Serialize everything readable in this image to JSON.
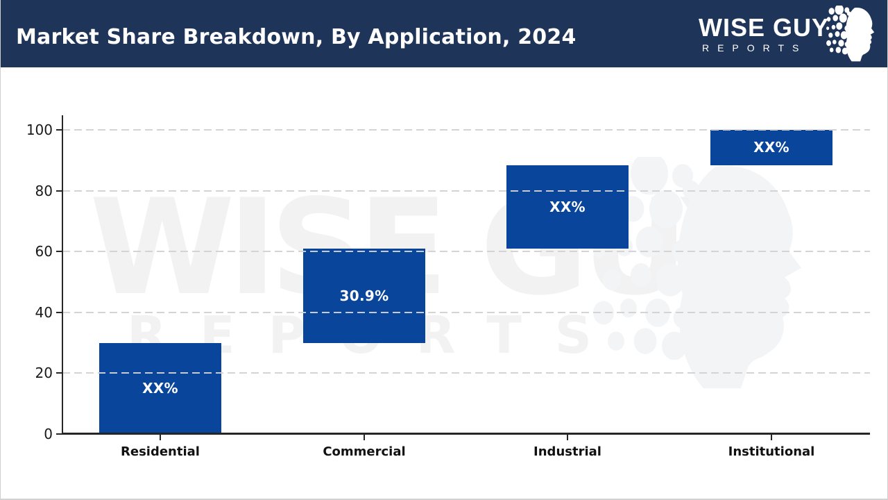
{
  "header": {
    "title": "Market Share Breakdown, By Application, 2024",
    "logo": {
      "name": "Wise Guy Reports",
      "line1": "WISE GUY",
      "line2": "REPORTS"
    }
  },
  "watermark": {
    "line1": "WISE GUY",
    "line2": "REPORTS"
  },
  "colors": {
    "header_bg": "#1f3459",
    "bar": "#0a459c",
    "bar_label": "#ffffff",
    "grid_line": "#d2d2d2",
    "axis": "#262626",
    "tick_label": "#1a1a1a",
    "watermark": "#f2f2f2"
  },
  "chart_data": {
    "type": "bar",
    "subtype": "floating-segment-waterfall",
    "title": "Market Share Breakdown, By Application, 2024",
    "categories": [
      "Residential",
      "Commercial",
      "Industrial",
      "Institutional"
    ],
    "segments": [
      {
        "category": "Residential",
        "start": 0,
        "end": 30.0,
        "label": "XX%"
      },
      {
        "category": "Commercial",
        "start": 30.0,
        "end": 60.9,
        "label": "30.9%"
      },
      {
        "category": "Industrial",
        "start": 60.9,
        "end": 88.4,
        "label": "XX%"
      },
      {
        "category": "Institutional",
        "start": 88.4,
        "end": 100,
        "label": "XX%"
      }
    ],
    "xlabel": "",
    "ylabel": "",
    "ylim": [
      0,
      100
    ],
    "yticks": [
      0,
      20,
      40,
      60,
      80,
      100
    ],
    "grid": "horizontal-dashed",
    "legend": null,
    "bar_color": "#0a459c",
    "value_labels_inside": true
  }
}
